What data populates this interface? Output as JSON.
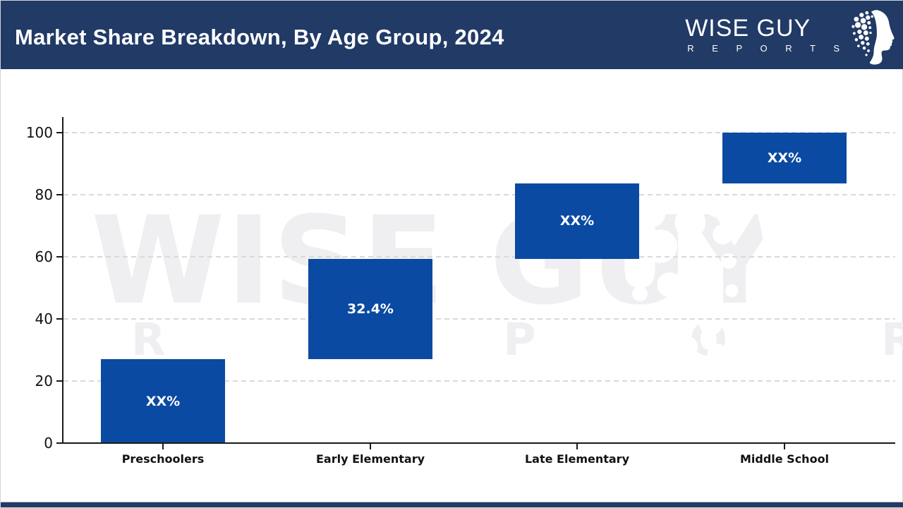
{
  "header": {
    "title": "Market Share Breakdown, By Age Group, 2024",
    "logo": {
      "name": "WISE GUY",
      "sub": "R E P O R T S"
    }
  },
  "watermark": {
    "line1": "WISE GUY",
    "line2": "R E P O R T S"
  },
  "chart_data": {
    "type": "bar",
    "subtype": "waterfall-floating-bars",
    "title": "Market Share Breakdown, By Age Group, 2024",
    "categories": [
      "Preschoolers",
      "Early Elementary",
      "Late Elementary",
      "Middle School"
    ],
    "segments": [
      {
        "category": "Preschoolers",
        "start": 0,
        "end": 27,
        "label": "XX%"
      },
      {
        "category": "Early Elementary",
        "start": 27,
        "end": 59.4,
        "label": "32.4%"
      },
      {
        "category": "Late Elementary",
        "start": 59.4,
        "end": 83.7,
        "label": "XX%"
      },
      {
        "category": "Middle School",
        "start": 83.7,
        "end": 100,
        "label": "XX%"
      }
    ],
    "bar_labels": [
      "XX%",
      "32.4%",
      "XX%",
      "XX%"
    ],
    "ylim": [
      0,
      100
    ],
    "yticks": [
      0,
      20,
      40,
      60,
      80,
      100
    ],
    "xlabel": "",
    "ylabel": "",
    "grid": "horizontal-dashed",
    "legend": "none",
    "bar_color": "#0b4aa2"
  },
  "colors": {
    "header_bg": "#213a66",
    "footer_bg": "#213a66",
    "bar": "#0b4aa2",
    "grid": "#d9d9d9",
    "axis": "#1a1a1a",
    "watermark": "#efeff2",
    "title_text": "#ffffff",
    "bar_label_text": "#ffffff"
  }
}
